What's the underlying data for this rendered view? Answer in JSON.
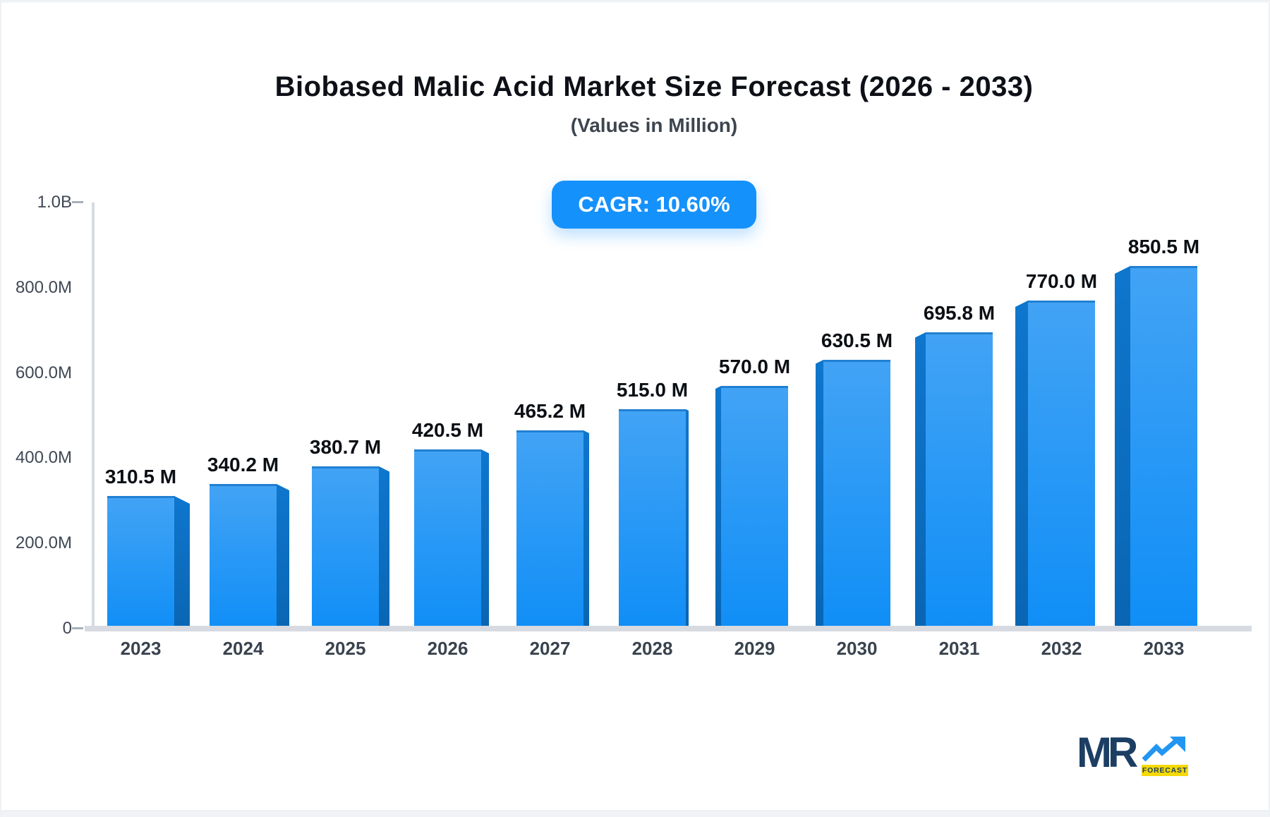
{
  "chart_data": {
    "type": "bar",
    "title": "Biobased Malic Acid Market Size Forecast (2026 - 2033)",
    "subtitle": "(Values in Million)",
    "cagr_label": "CAGR: 10.60%",
    "categories": [
      "2023",
      "2024",
      "2025",
      "2026",
      "2027",
      "2028",
      "2029",
      "2030",
      "2031",
      "2032",
      "2033"
    ],
    "values": [
      310.5,
      340.2,
      380.7,
      420.5,
      465.2,
      515.0,
      570.0,
      630.5,
      695.8,
      770.0,
      850.5
    ],
    "value_labels": [
      "310.5 M",
      "340.2 M",
      "380.7 M",
      "420.5 M",
      "465.2 M",
      "515.0 M",
      "570.0 M",
      "630.5 M",
      "695.8 M",
      "770.0 M",
      "850.5 M"
    ],
    "unit": "M",
    "ylim": [
      0,
      1000
    ],
    "yticks": [
      {
        "value": 0,
        "label": "0",
        "dash": true
      },
      {
        "value": 200,
        "label": "200.0M",
        "dash": false
      },
      {
        "value": 400,
        "label": "400.0M",
        "dash": false
      },
      {
        "value": 600,
        "label": "600.0M",
        "dash": false
      },
      {
        "value": 800,
        "label": "800.0M",
        "dash": false
      },
      {
        "value": 1000,
        "label": "1.0B",
        "dash": true
      }
    ],
    "grid": false,
    "legend": null,
    "bar_style": "3d-perspective"
  },
  "colors": {
    "bar_face_top": "#42a3f5",
    "bar_face_bottom": "#0f8ef6",
    "bar_top_edge": "#2180d2",
    "bar_side_top": "#0e76cd",
    "bar_side_bottom": "#0a65b2",
    "badge_bg": "#1591fc",
    "badge_text": "#ffffff",
    "axis": "#d7dbe1",
    "tick_text": "#3f4854",
    "logo_navy": "#1c3e63",
    "logo_yellow": "#f5d908",
    "logo_arrow": "#2196f3"
  },
  "logo": {
    "brand": "MR",
    "tagline": "FORECAST"
  }
}
